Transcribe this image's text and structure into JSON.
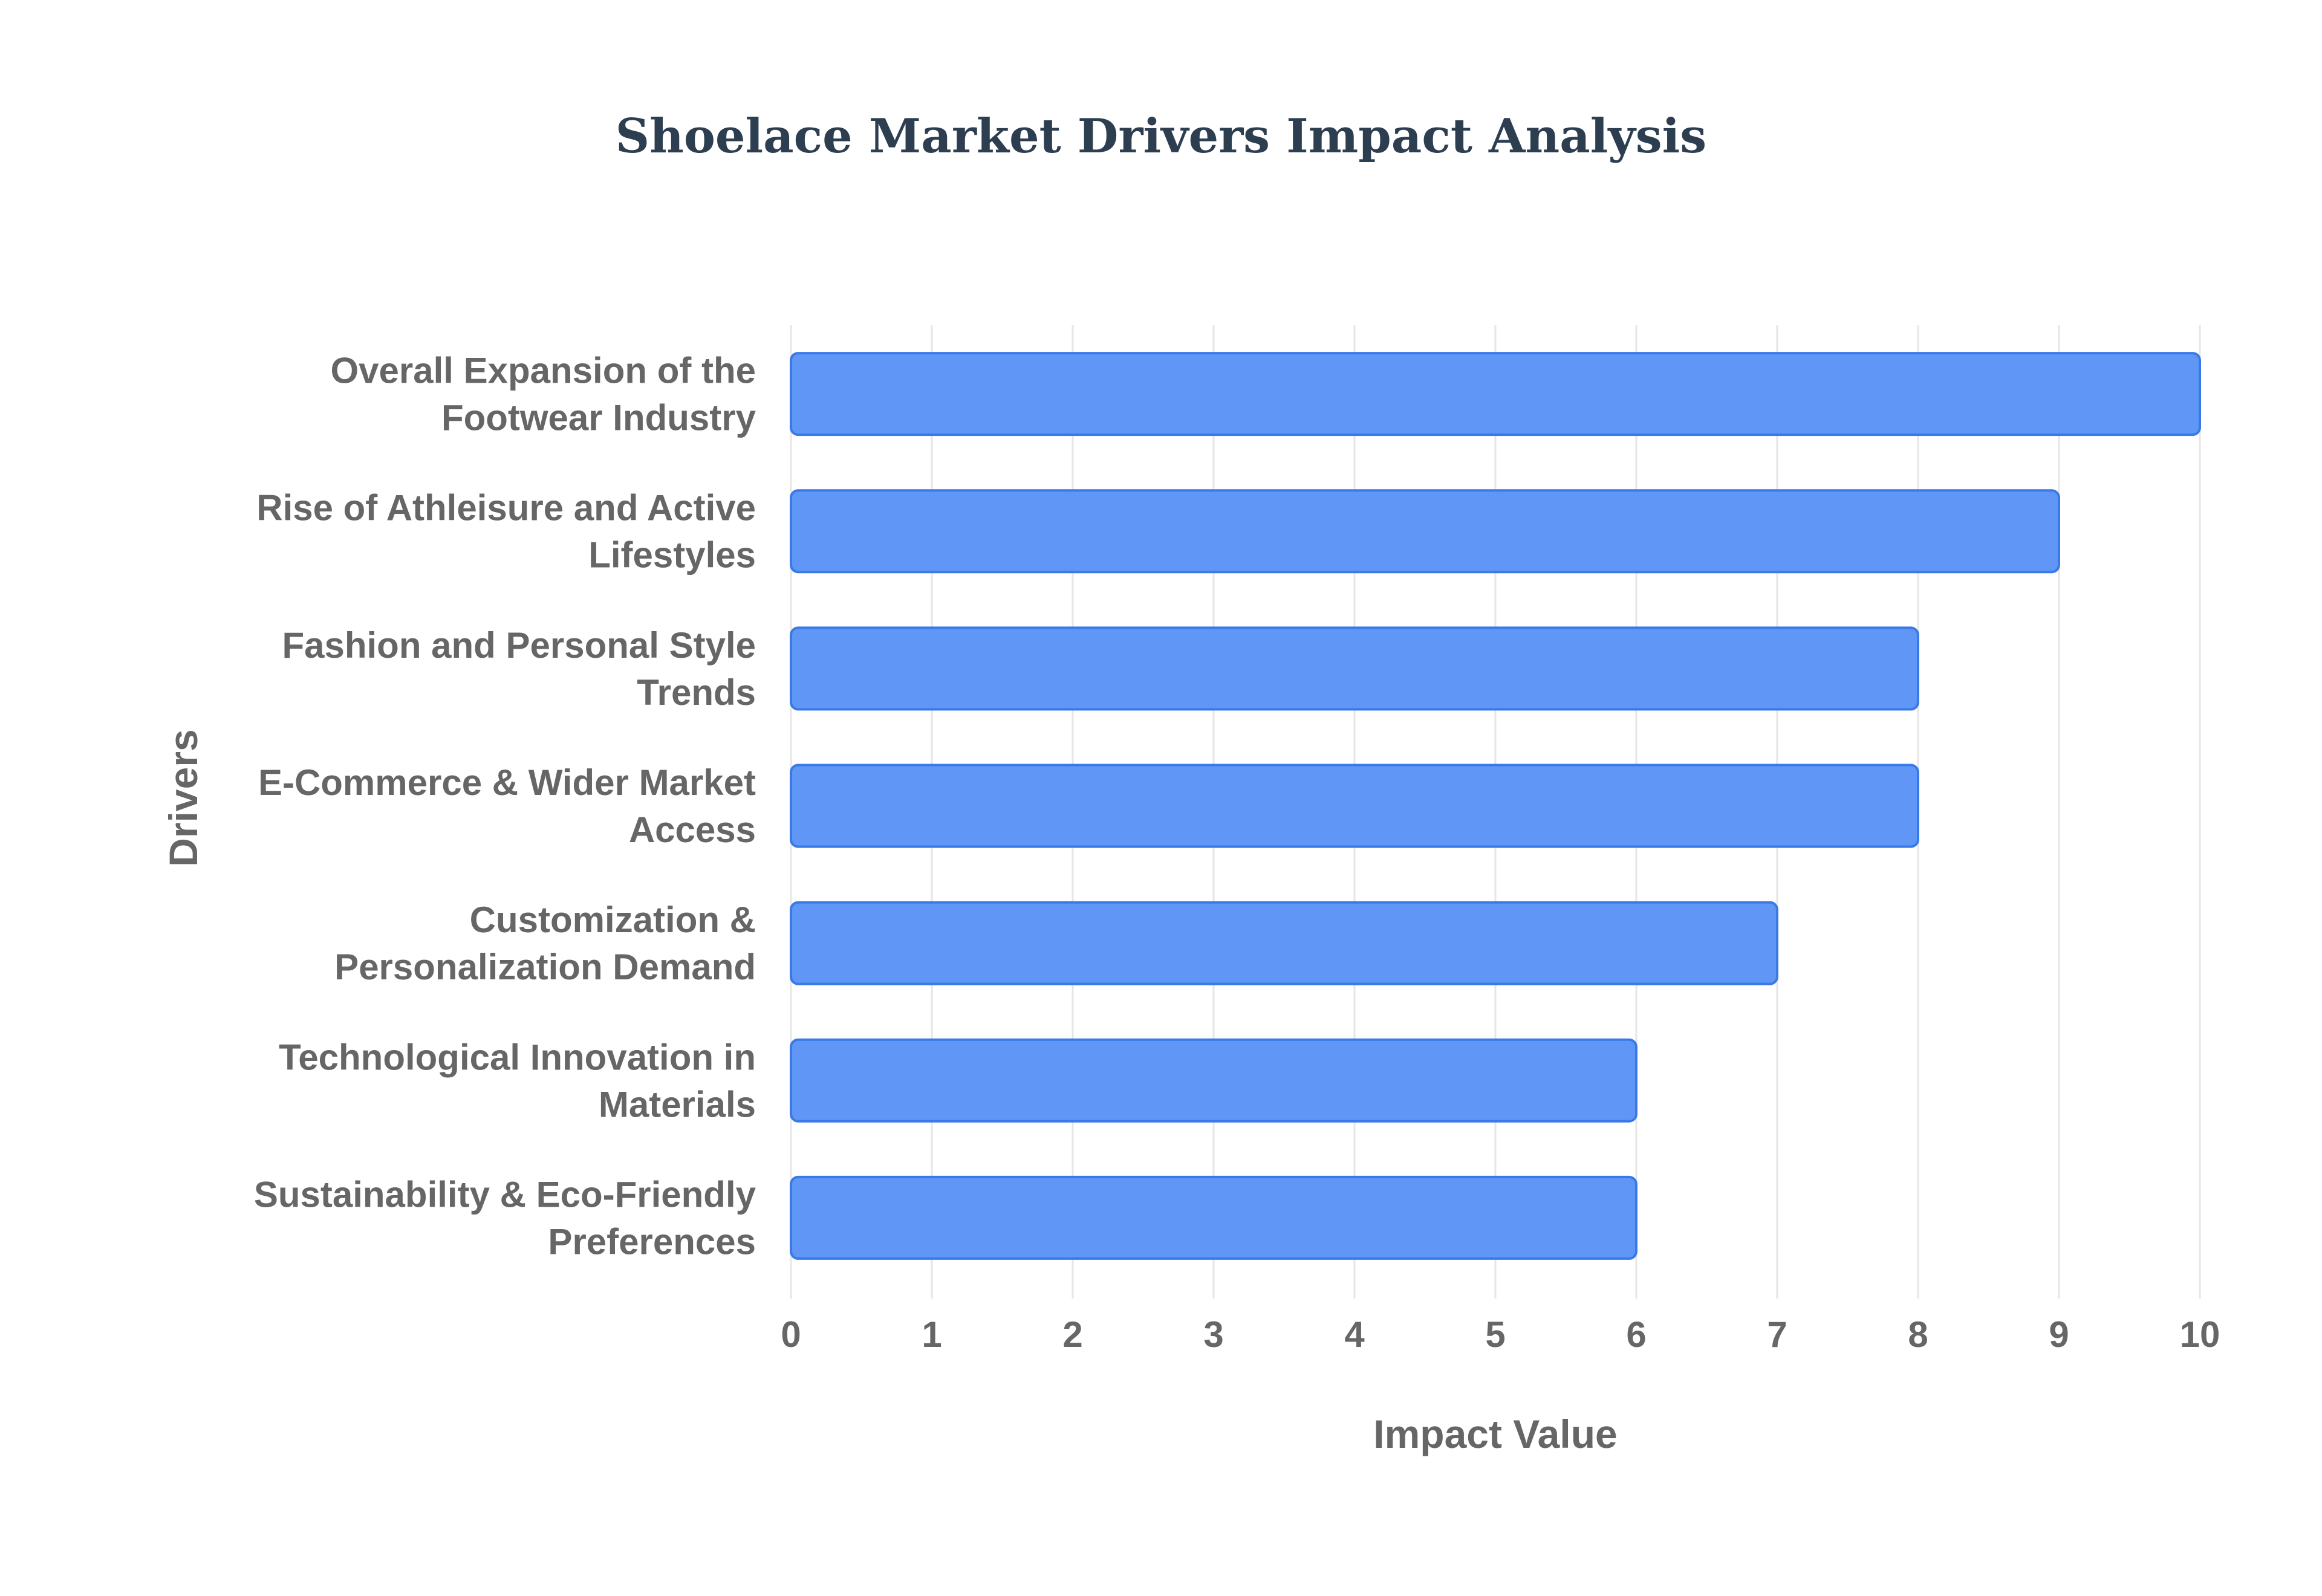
{
  "chart_data": {
    "type": "bar",
    "orientation": "horizontal",
    "title": "Shoelace Market Drivers Impact Analysis",
    "xlabel": "Impact Value",
    "ylabel": "Drivers",
    "xlim": [
      0,
      10
    ],
    "xticks": [
      0,
      1,
      2,
      3,
      4,
      5,
      6,
      7,
      8,
      9,
      10
    ],
    "grid": true,
    "legend": "none",
    "bar_color": "#6096f5",
    "bar_border_color": "#3a7ae8",
    "categories": [
      [
        "Overall Expansion of the",
        "Footwear Industry"
      ],
      [
        "Rise of Athleisure and Active",
        "Lifestyles"
      ],
      [
        "Fashion and Personal Style",
        "Trends"
      ],
      [
        "E-Commerce & Wider Market",
        "Access"
      ],
      [
        "Customization &",
        "Personalization Demand"
      ],
      [
        "Technological Innovation in",
        "Materials"
      ],
      [
        "Sustainability & Eco-Friendly",
        "Preferences"
      ]
    ],
    "values": [
      10,
      9,
      8,
      8,
      7,
      6,
      6
    ]
  }
}
